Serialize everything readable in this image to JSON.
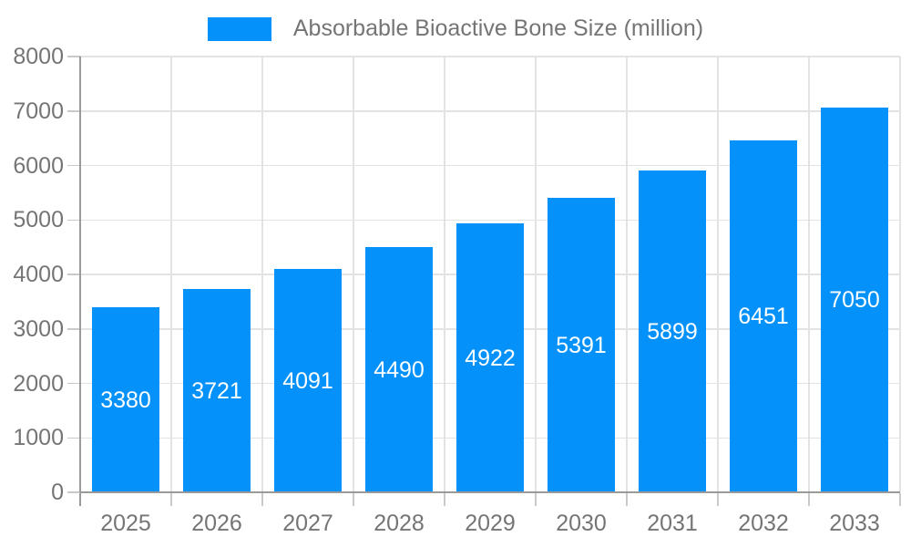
{
  "legend": {
    "label": "Absorbable Bioactive Bone Size (million)",
    "swatch_color": "#0491FA",
    "position": "top"
  },
  "chart_data": {
    "type": "bar",
    "title": "Absorbable Bioactive Bone Size (million)",
    "categories": [
      "2025",
      "2026",
      "2027",
      "2028",
      "2029",
      "2030",
      "2031",
      "2032",
      "2033"
    ],
    "values": [
      3380,
      3721,
      4091,
      4490,
      4922,
      5391,
      5899,
      6451,
      7050
    ],
    "series": [
      {
        "name": "Absorbable Bioactive Bone Size (million)",
        "values": [
          3380,
          3721,
          4091,
          4490,
          4922,
          5391,
          5899,
          6451,
          7050
        ]
      }
    ],
    "xlabel": "",
    "ylabel": "",
    "ylim": [
      0,
      8000
    ],
    "y_ticks": [
      0,
      1000,
      2000,
      3000,
      4000,
      5000,
      6000,
      7000,
      8000
    ],
    "grid": true,
    "legend_position": "top",
    "value_label_position": "inside-center",
    "colors": {
      "bar": "#0491FA",
      "value_label": "#FFFFFF",
      "axis_text": "#757575",
      "gridline": "#E3E3E3",
      "axis_line": "#9A9A9A",
      "tick": "#C9C9C9"
    }
  }
}
